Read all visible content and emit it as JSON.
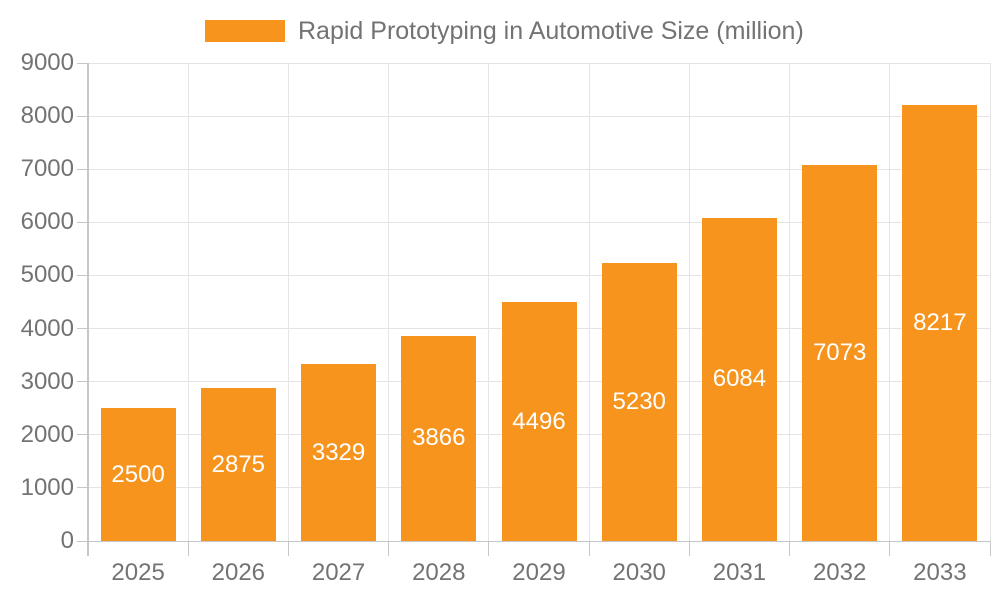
{
  "chart_data": {
    "type": "bar",
    "title": "Rapid Prototyping in Automotive Size (million)",
    "legend": {
      "label": "Rapid Prototyping in Automotive Size (million)",
      "position": "top"
    },
    "categories": [
      "2025",
      "2026",
      "2027",
      "2028",
      "2029",
      "2030",
      "2031",
      "2032",
      "2033"
    ],
    "values": [
      2500,
      2875,
      3329,
      3866,
      4496,
      5230,
      6084,
      7073,
      8217
    ],
    "xlabel": "",
    "ylabel": "",
    "ylim": [
      0,
      9000
    ],
    "ytick_interval": 1000,
    "yticks": [
      0,
      1000,
      2000,
      3000,
      4000,
      5000,
      6000,
      7000,
      8000,
      9000
    ],
    "grid": true,
    "colors": {
      "bar": "#F7941E",
      "value_label": "#FFFFFF",
      "axis_text": "#737373",
      "gridline": "#E4E4E4",
      "axis_line": "#C6C6C6",
      "background": "#FFFFFF"
    }
  }
}
